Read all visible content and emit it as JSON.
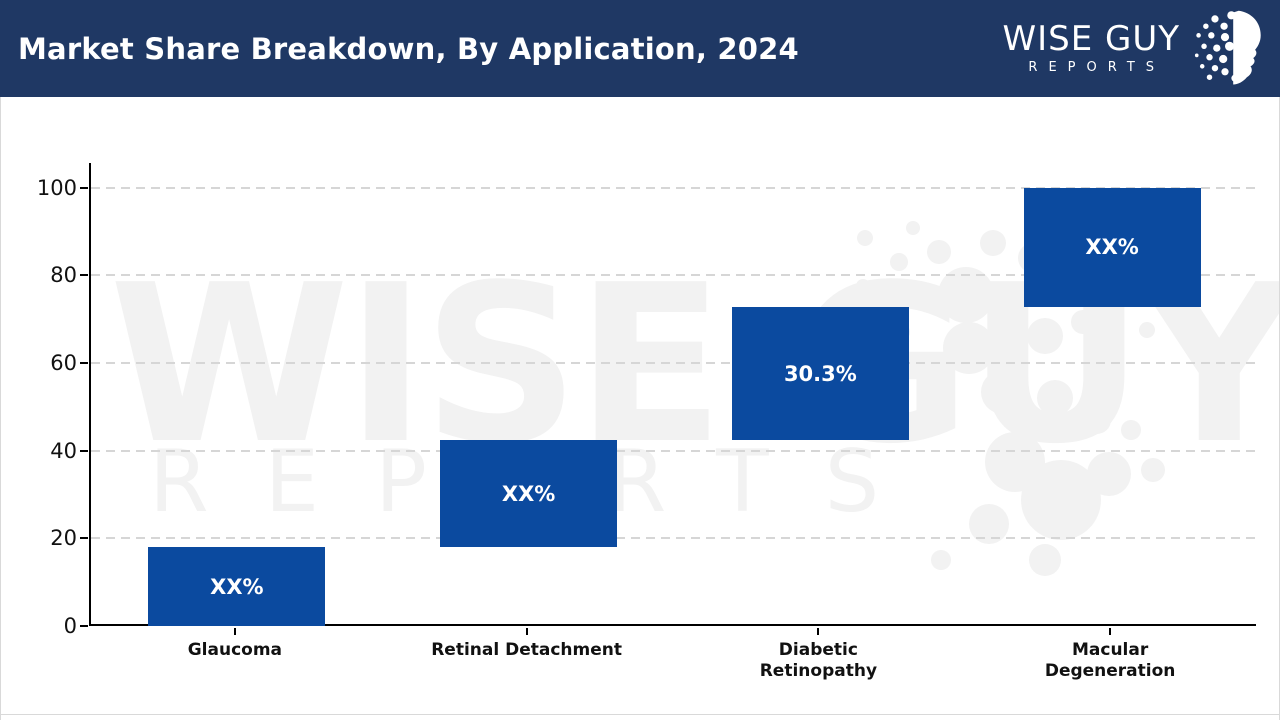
{
  "header": {
    "title": "Market Share Breakdown, By Application, 2024",
    "logo": {
      "line1": "WISE GUY",
      "line2": "REPORTS"
    }
  },
  "watermark": {
    "line1": "WISE GUY",
    "line2": "REPORTS"
  },
  "chart_data": {
    "type": "bar",
    "subtype": "floating-segment-waterfall",
    "title": "Market Share Breakdown, By Application, 2024",
    "categories": [
      "Glaucoma",
      "Retinal Detachment",
      "Diabetic Retinopathy",
      "Macular Degeneration"
    ],
    "category_lines": [
      [
        "Glaucoma"
      ],
      [
        "Retinal Detachment"
      ],
      [
        "Diabetic",
        "Retinopathy"
      ],
      [
        "Macular",
        "Degeneration"
      ]
    ],
    "segments": [
      {
        "category": "Glaucoma",
        "start": 0,
        "end": 18,
        "label": "XX%"
      },
      {
        "category": "Retinal Detachment",
        "start": 18,
        "end": 42.4,
        "label": "XX%"
      },
      {
        "category": "Diabetic Retinopathy",
        "start": 42.4,
        "end": 72.7,
        "label": "30.3%"
      },
      {
        "category": "Macular Degeneration",
        "start": 72.7,
        "end": 100,
        "label": "XX%"
      }
    ],
    "yticks": [
      0,
      20,
      40,
      60,
      80,
      100
    ],
    "ylim": [
      0,
      105.6
    ],
    "xlabel": "",
    "ylabel": "",
    "grid": "horizontal dashed",
    "legend": "none",
    "bar_color": "#0b4a9f"
  },
  "colors": {
    "header_bg": "#1f3864",
    "bar": "#0b4a9f",
    "grid": "#d6d6d6",
    "axis": "#000000",
    "watermark": "#f2f2f2",
    "title_text": "#ffffff"
  }
}
